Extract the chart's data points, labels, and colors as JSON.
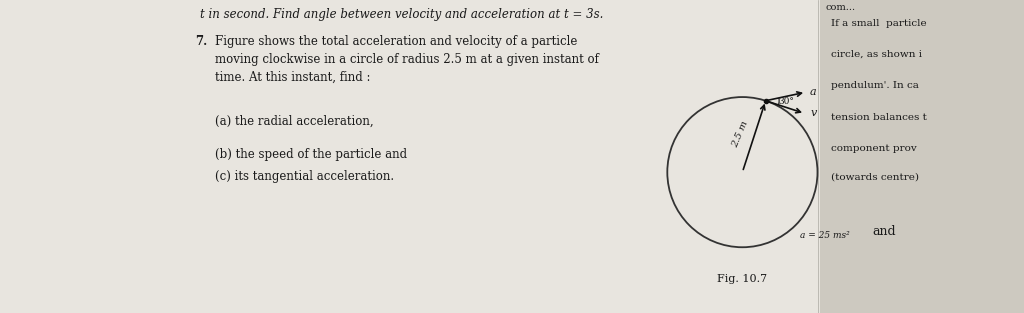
{
  "bg_left": "#e8e5df",
  "bg_right": "#cdc9c0",
  "text_color": "#1a1a1a",
  "header_text": "t in second. Find angle between velocity and acceleration at t = 3s.",
  "problem_number": "7.",
  "problem_text": "Figure shows the total acceleration and velocity of a particle\nmoving clockwise in a circle of radius 2.5 m at a given instant of\ntime. At this instant, find :",
  "sub_items": [
    "(a) the radial acceleration,",
    "(b) the speed of the particle and",
    "(c) its tangential acceleration."
  ],
  "right_text_lines": [
    "If a small  particle",
    "circle, as shown i",
    "pendulum'. In ca",
    "tension balances t",
    "component prov",
    "(towards centre)"
  ],
  "bottom_right_text": "and",
  "fig_label": "Fig. 10.7",
  "radius_label": "2.5 m",
  "angle_label": "30°",
  "accel_label": "a",
  "velocity_label": "v",
  "accel_bottom_label": "a = 25 ms²",
  "circle_color": "#333333",
  "arrow_color": "#111111",
  "font_size_body": 8.5,
  "font_size_small": 7.5,
  "font_size_fig": 8
}
